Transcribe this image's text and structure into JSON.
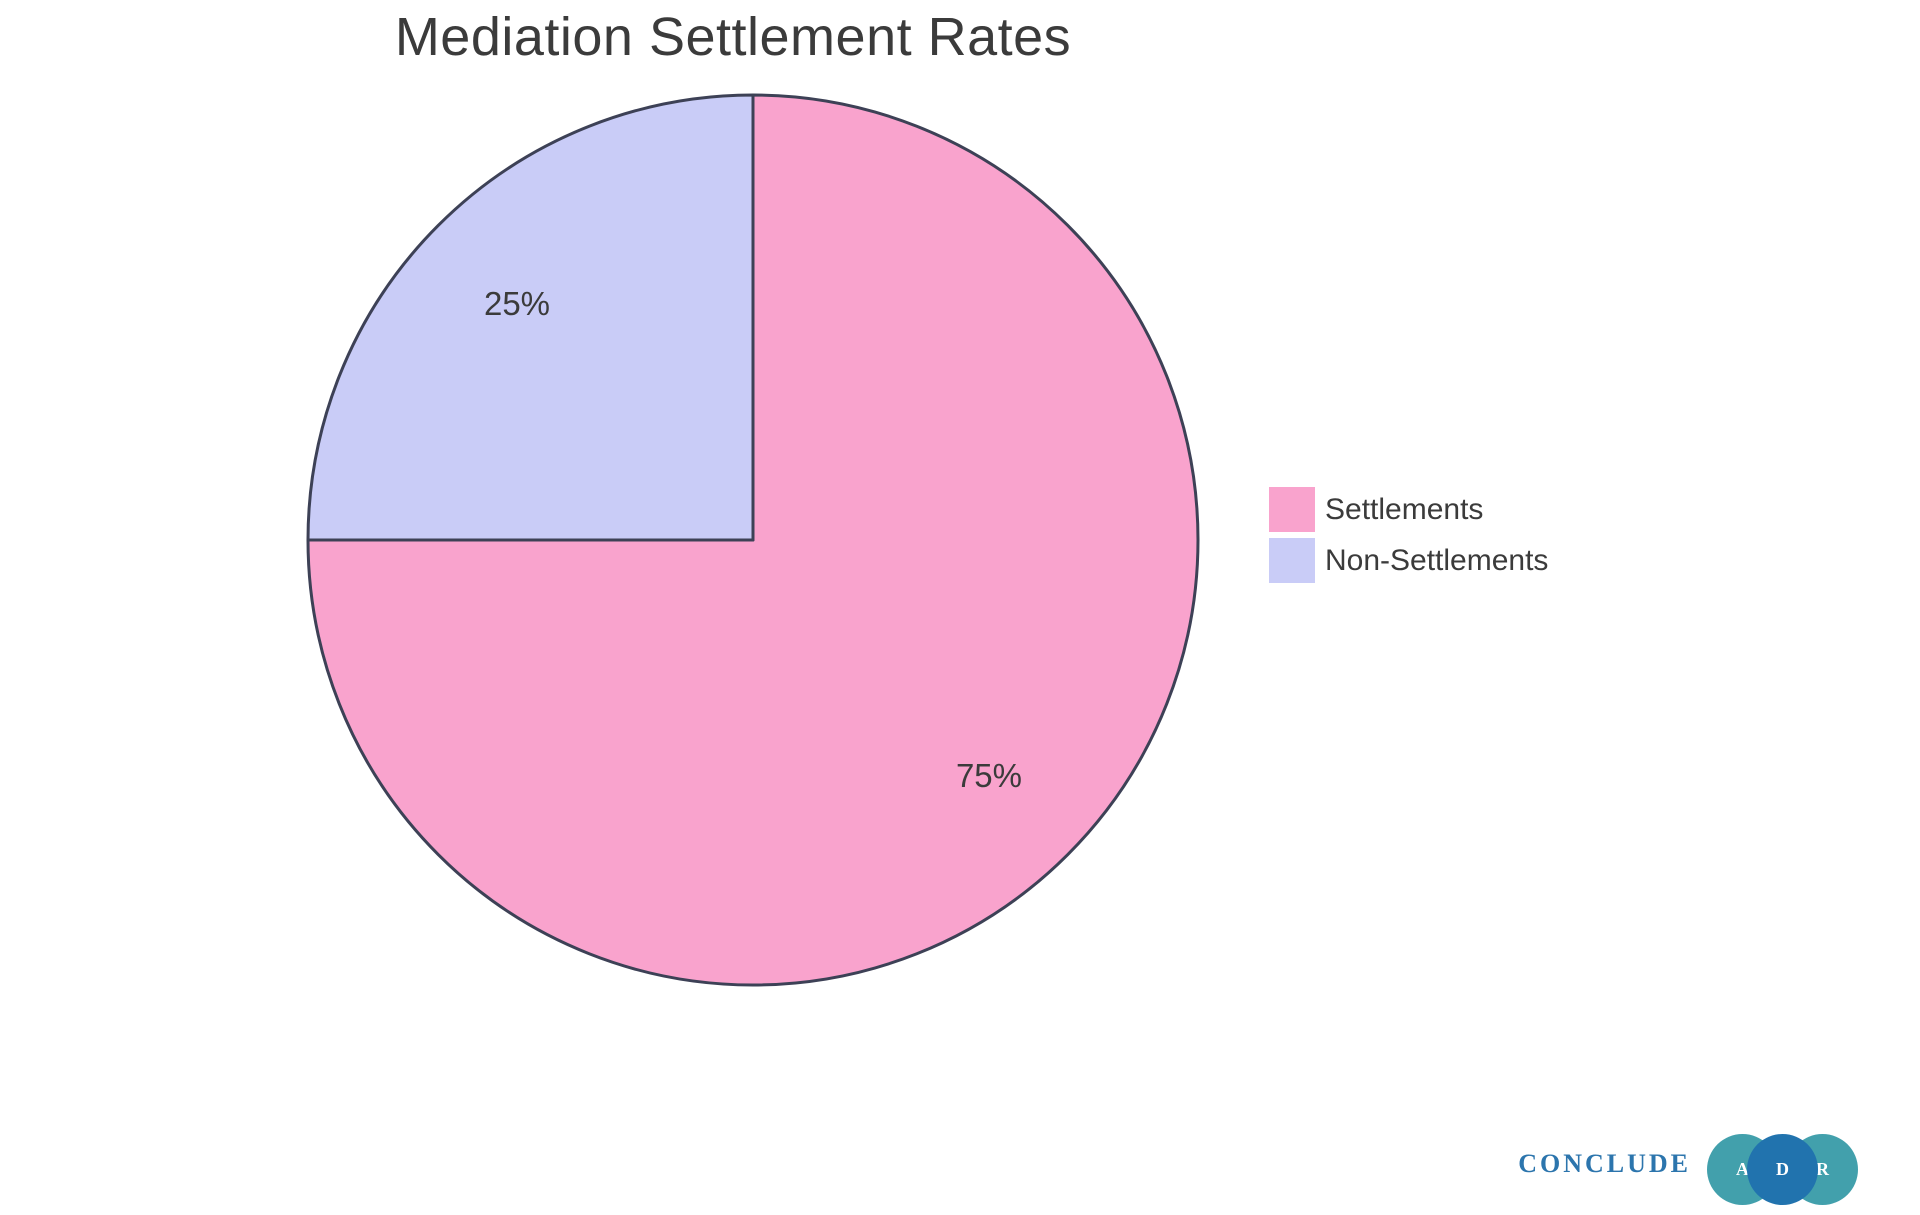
{
  "chart_data": {
    "type": "pie",
    "title": "Mediation Settlement Rates",
    "labels": [
      "Settlements",
      "Non-Settlements"
    ],
    "values": [
      75,
      25
    ],
    "slice_labels": [
      "75%",
      "25%"
    ],
    "colors": [
      "#F9A3CD",
      "#C9CCF7"
    ],
    "stroke_color": "#3D4156",
    "stroke_width": 3,
    "text_color": "#3B3B3B",
    "start_angle": "top",
    "direction": "clockwise",
    "legend_position": "right",
    "background": "#FFFFFF"
  },
  "logo": {
    "brand": "CONCLUDE",
    "brand_color": "#2C75AD",
    "letter_color": "#FFFFFF",
    "circles": [
      {
        "letter": "A",
        "color": "#42A0AC"
      },
      {
        "letter": "D",
        "color": "#2173AE"
      },
      {
        "letter": "R",
        "color": "#42A0AC"
      }
    ]
  }
}
